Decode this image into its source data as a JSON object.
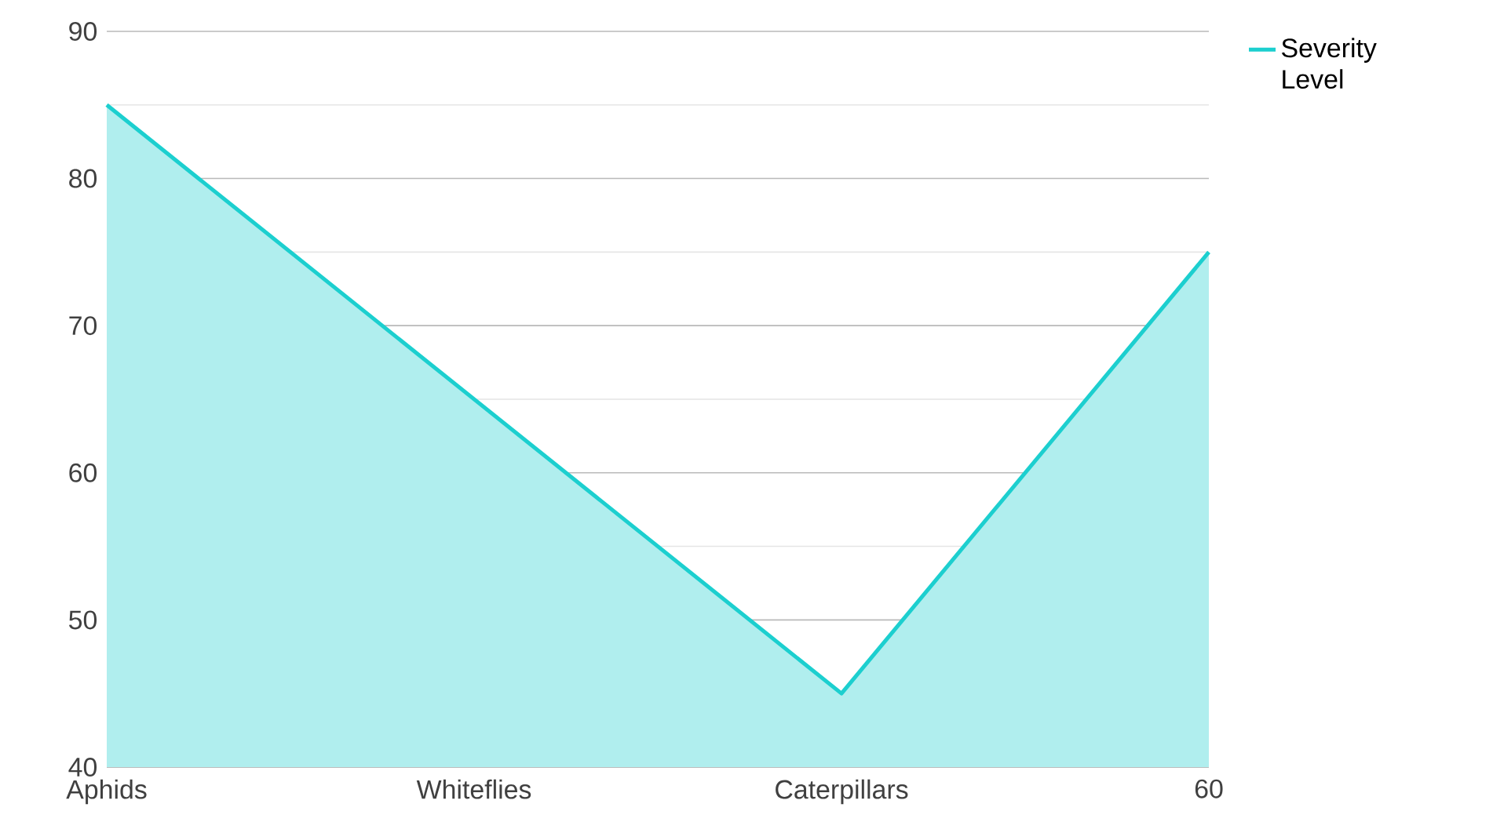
{
  "chart_data": {
    "type": "area",
    "categories": [
      "Aphids",
      "Whiteflies",
      "Caterpillars",
      "60"
    ],
    "series": [
      {
        "name": "Severity Level",
        "color": "#1ccfcf",
        "values": [
          85,
          65,
          45,
          75
        ]
      }
    ],
    "ylim": [
      40,
      90
    ],
    "yticks": [
      40,
      50,
      60,
      70,
      80,
      90
    ],
    "grid": "y",
    "legend": "top right"
  }
}
